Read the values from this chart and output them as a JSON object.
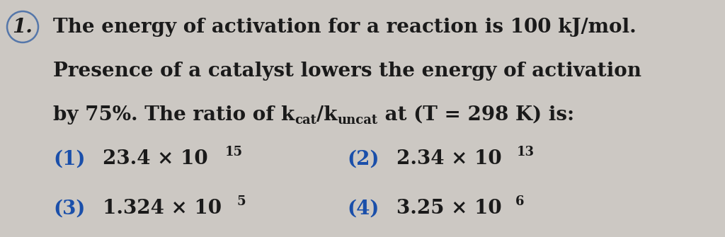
{
  "bg_color": "#ccc8c3",
  "text_color": "#1a1a1a",
  "option_color": "#1a4faa",
  "font_size_main": 20,
  "font_size_sub": 13,
  "font_size_exp": 13,
  "line1": "The energy of activation for a reaction is 100 kJ/mol.",
  "line2": "Presence of a catalyst lowers the energy of activation",
  "line3a": "by 75%. The ratio of k",
  "line3b": "cat",
  "line3c": "/k",
  "line3d": "uncat",
  "line3e": " at (T = 298 K) is:",
  "opt1_num": "(1)",
  "opt1_val": "23.4 × 10",
  "opt1_exp": "15",
  "opt2_num": "(2)",
  "opt2_val": "2.34 × 10",
  "opt2_exp": "13",
  "opt3_num": "(3)",
  "opt3_val": "1.324 × 10",
  "opt3_exp": "5",
  "opt4_num": "(4)",
  "opt4_val": "3.25 × 10",
  "opt4_exp": "6"
}
